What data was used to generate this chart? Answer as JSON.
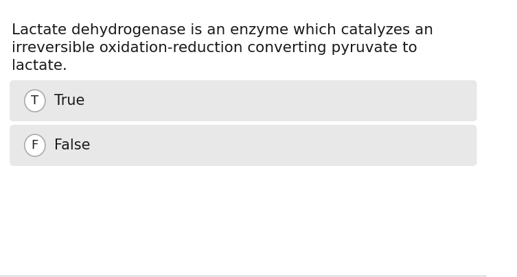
{
  "background_color": "#ffffff",
  "question_text_line1": "Lactate dehydrogenase is an enzyme which catalyzes an",
  "question_text_line2": "irreversible oxidation-reduction converting pyruvate to",
  "question_text_line3": "lactate.",
  "question_text_color": "#1a1a1a",
  "question_font_size": 15.5,
  "options": [
    {
      "label": "T",
      "text": "True"
    },
    {
      "label": "F",
      "text": "False"
    }
  ],
  "option_box_color": "#e8e8e8",
  "option_text_color": "#1a1a1a",
  "option_font_size": 15,
  "circle_color": "#ffffff",
  "circle_edge_color": "#aaaaaa",
  "label_font_size": 13,
  "bottom_line_color": "#cccccc"
}
